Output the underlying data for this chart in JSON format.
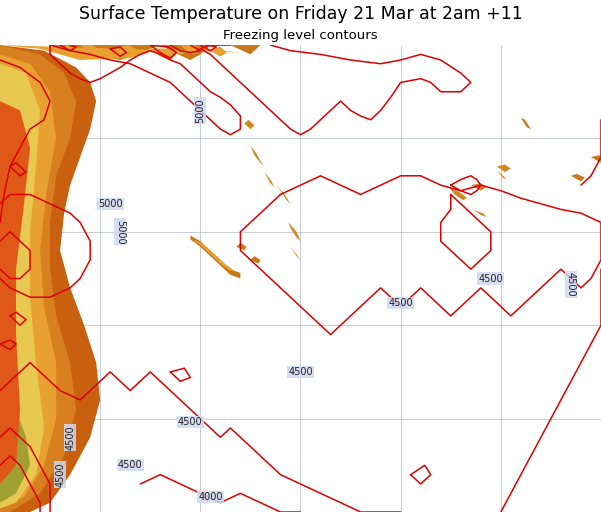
{
  "title": "Surface Temperature on Friday 21 Mar at 2am +11",
  "subtitle": "Freezing level contours",
  "title_fontsize": 12.5,
  "subtitle_fontsize": 9.5,
  "fig_width": 6.01,
  "fig_height": 5.12,
  "dpi": 100,
  "ocean_color": "#d0d8f0",
  "grid_color": "#b0b8d0",
  "title_bg_color": "#ffffff",
  "contour_color": "#dd0000",
  "lw": 1.1,
  "map_extent": [
    155,
    185,
    -35,
    -10
  ],
  "grid_lines_lon": [
    160,
    165,
    170,
    175,
    180,
    185
  ],
  "grid_lines_lat": [
    -30,
    -25,
    -20,
    -15
  ],
  "aus_land_base": "#c86010",
  "aus_land_mid": "#d88020",
  "aus_land_bright": "#e8a030",
  "aus_land_yellow": "#e8c850",
  "aus_land_green": "#a0a030",
  "island_color": "#c87818",
  "island_color2": "#d08820",
  "label_fontsize": 7,
  "label_color": "#222222"
}
